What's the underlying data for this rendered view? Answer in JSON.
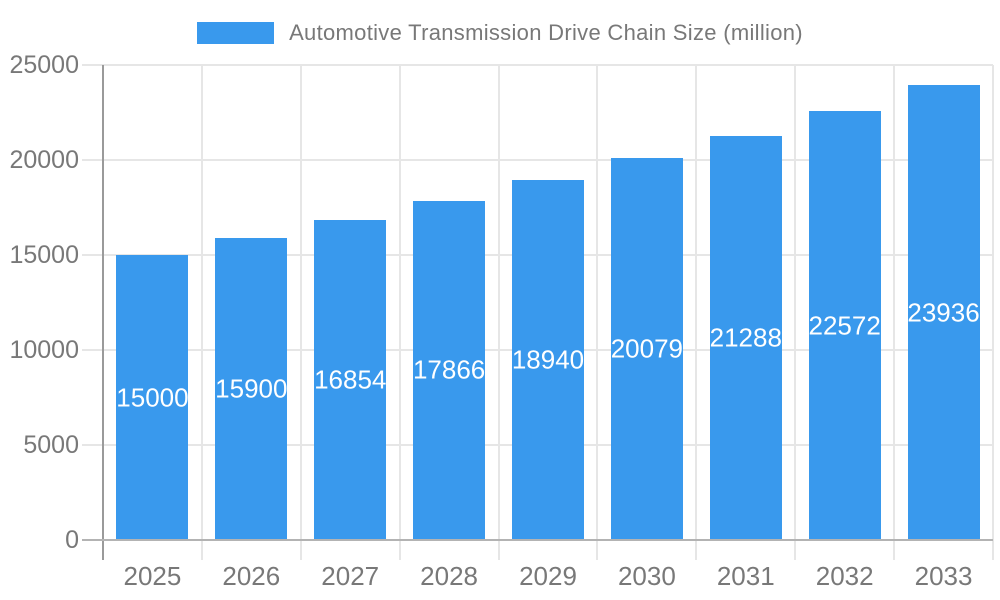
{
  "legend": {
    "label": "Automotive Transmission Drive Chain Size (million)"
  },
  "chart_data": {
    "type": "bar",
    "title": "Automotive Transmission Drive Chain Size (million)",
    "categories": [
      "2025",
      "2026",
      "2027",
      "2028",
      "2029",
      "2030",
      "2031",
      "2032",
      "2033"
    ],
    "values": [
      15000,
      15900,
      16854,
      17866,
      18940,
      20079,
      21288,
      22572,
      23936
    ],
    "xlabel": "",
    "ylabel": "",
    "ylim": [
      0,
      25000
    ],
    "y_ticks": [
      0,
      5000,
      10000,
      15000,
      20000,
      25000
    ],
    "grid": true,
    "legend_position": "top",
    "value_labels": "inside-center"
  },
  "colors": {
    "bar": "#3999ED",
    "grid_line": "#E6E6E6",
    "y_axis_line": "#9A9A9A",
    "x_axis_line": "#B3B3B3",
    "tick_text": "#787878",
    "value_text": "#FFFFFF",
    "background": "#FFFFFF"
  }
}
